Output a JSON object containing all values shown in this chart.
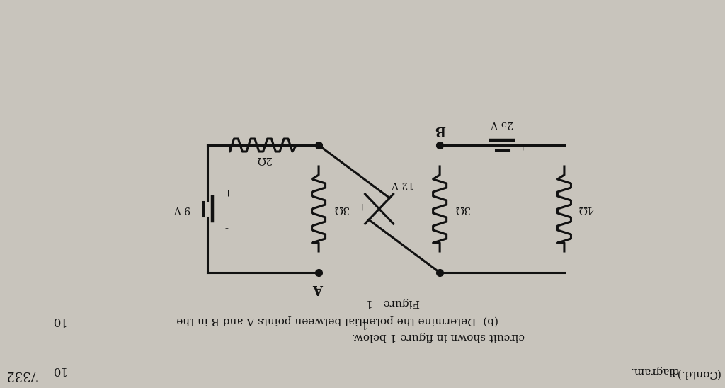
{
  "background_color": "#c8c4bc",
  "page_color": "#ddd8ce",
  "title_text": "7332",
  "contd_text": "(Contd.)",
  "figure_label": "Figure - 1",
  "figure_number": "1",
  "question_b": "(b)  Determine the potential between points A and B in the",
  "question_b2": "circuit shown in figure-1 below.",
  "marks1": "10",
  "marks2": "10",
  "diagram_label": "diagram.",
  "circuit": {
    "line_color": "#111111",
    "lw": 2.2,
    "resistor_4ohm_label": "4Ω",
    "resistor_3ohm_left_label": "3Ω",
    "resistor_3ohm_right_label": "3Ω",
    "resistor_2ohm_label": "2Ω",
    "battery_25v_label": "25 V",
    "battery_12v_label": "12 V",
    "battery_9v_label": "9 V",
    "point_a_label": "A",
    "point_b_label": "B"
  }
}
